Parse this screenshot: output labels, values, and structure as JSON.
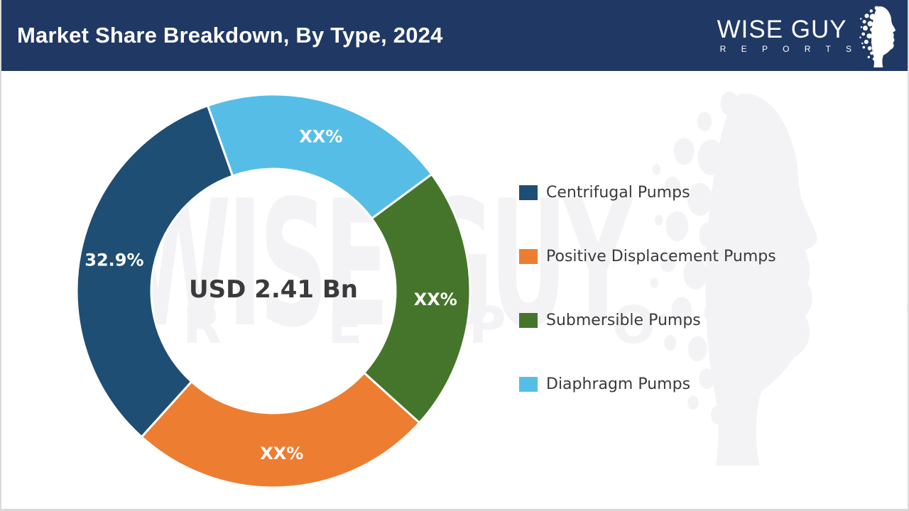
{
  "header": {
    "title": "Market Share Breakdown, By Type, 2024",
    "bg_color": "#203864",
    "logo": {
      "line1": "WISE GUY",
      "line2": "R E P O R T S",
      "face_icon": "dot-face-profile"
    }
  },
  "chart_data": {
    "type": "donut",
    "title": "Market Share Breakdown, By Type, 2024",
    "center_label": "USD 2.41 Bn",
    "legend_position": "right",
    "start_angle_deg": 109.5,
    "direction": "counterclockwise",
    "segments": [
      {
        "label": "Centrifugal Pumps",
        "display_label": "32.9%",
        "value_pct": 32.9,
        "color": "#1F4E74"
      },
      {
        "label": "Positive Displacement Pumps",
        "display_label": "XX%",
        "value_pct": 25.0,
        "color": "#ED7D31"
      },
      {
        "label": "Submersible Pumps",
        "display_label": "XX%",
        "value_pct": 21.8,
        "color": "#45752A"
      },
      {
        "label": "Diaphragm Pumps",
        "display_label": "XX%",
        "value_pct": 20.3,
        "color": "#56BEE6"
      }
    ]
  },
  "watermark": {
    "line1": "WISE GUY",
    "line2": "R E P O R T S",
    "color": "#F3F3F5"
  }
}
